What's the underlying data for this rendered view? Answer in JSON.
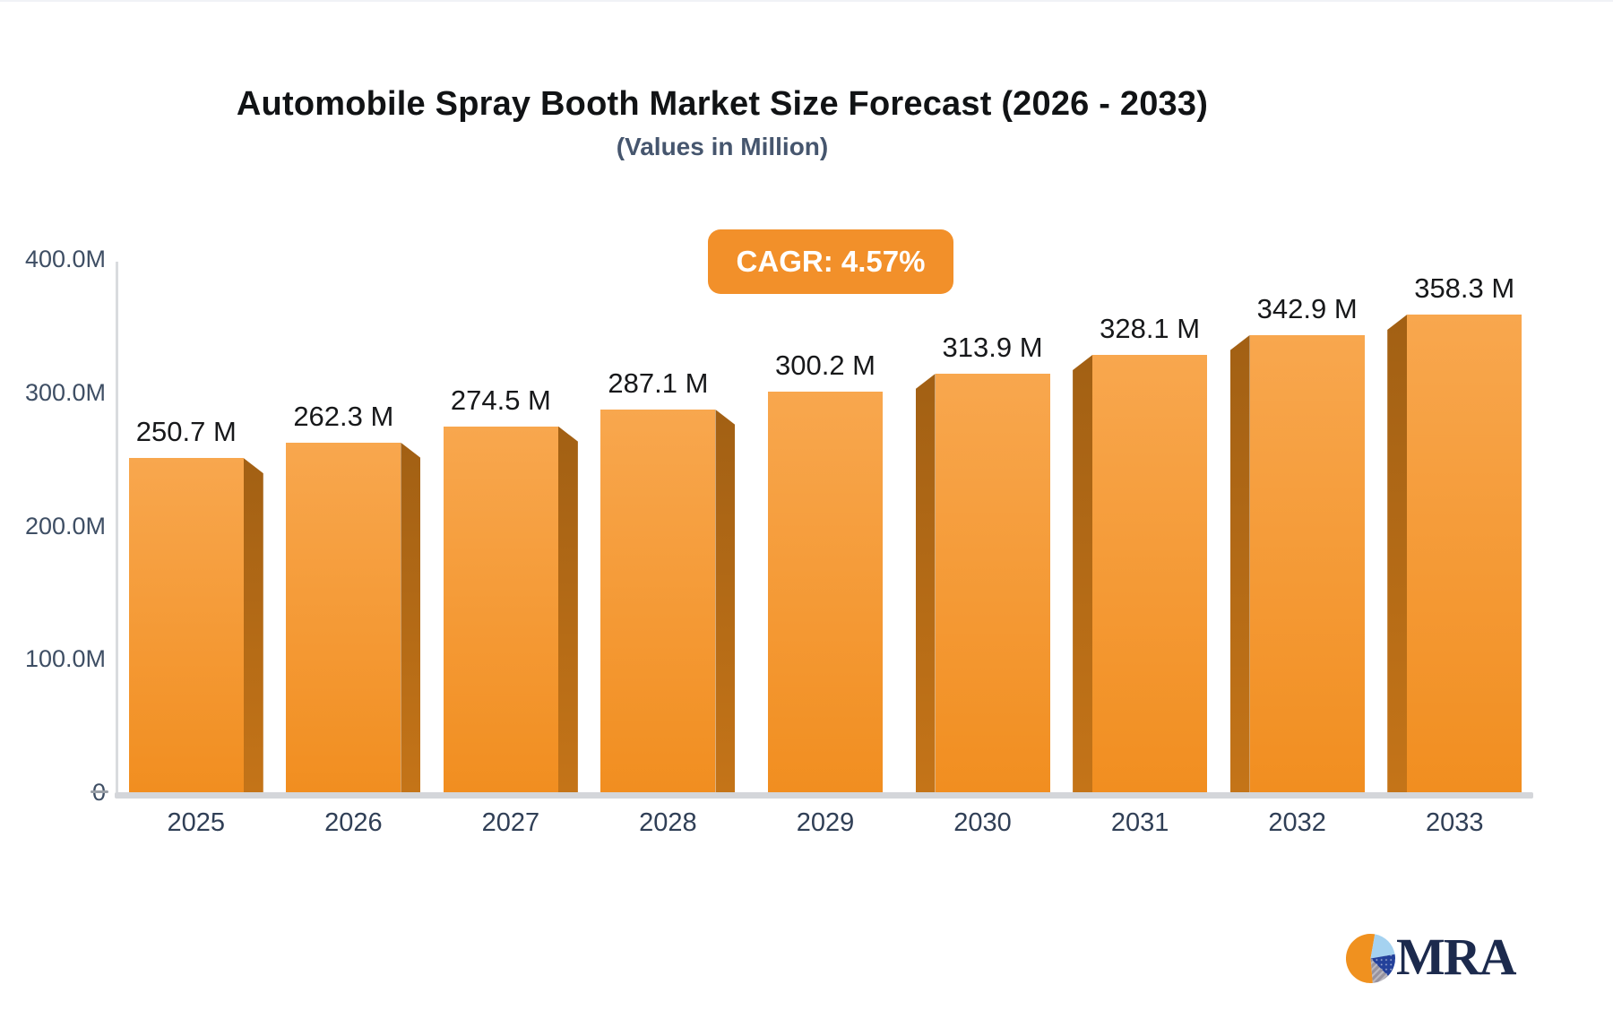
{
  "header": {
    "title": "Automobile Spray Booth Market Size Forecast (2026 - 2033)",
    "subtitle": "(Values in Million)",
    "cagr_badge": "CAGR: 4.57%"
  },
  "chart_data": {
    "type": "bar",
    "style": "3d-perspective-columns",
    "title": "Automobile Spray Booth Market Size Forecast (2026 - 2033)",
    "subtitle": "(Values in Million)",
    "annotation": "CAGR: 4.57%",
    "categories": [
      "2025",
      "2026",
      "2027",
      "2028",
      "2029",
      "2030",
      "2031",
      "2032",
      "2033"
    ],
    "values": [
      250.7,
      262.3,
      274.5,
      287.1,
      300.2,
      313.9,
      328.1,
      342.9,
      358.3
    ],
    "bar_labels": [
      "250.7 M",
      "262.3 M",
      "274.5 M",
      "287.1 M",
      "300.2 M",
      "313.9 M",
      "328.1 M",
      "342.9 M",
      "358.3 M"
    ],
    "ytick_labels": [
      "400.0M",
      "300.0M",
      "200.0M",
      "100.0M",
      "0"
    ],
    "ytick_values": [
      400,
      300,
      200,
      100,
      0
    ],
    "ylim": [
      0,
      400
    ],
    "xlabel": "",
    "ylabel": "",
    "grid": false,
    "legend": null
  },
  "logo": {
    "text": "MRA",
    "pie_colors": {
      "orange": "#f0911f",
      "light_blue": "#a5d2f0",
      "navy": "#24419a",
      "gray": "#97929e"
    }
  },
  "colors": {
    "bar_front_top": "#f8a74e",
    "bar_front_bottom": "#f18e20",
    "bar_side_top": "#a26014",
    "bar_side_bottom": "#c47418",
    "badge_bg": "#f2902a",
    "badge_text": "#ffffff",
    "title_text": "#111315",
    "subtitle_text": "#46566e",
    "axis_line": "#d9dbde",
    "baseline": "#d4d6da",
    "zero_tick": "#9aa0a8",
    "ytick_text": "#3e4e64",
    "xtick_text": "#303f56",
    "value_label": "#17181a"
  }
}
